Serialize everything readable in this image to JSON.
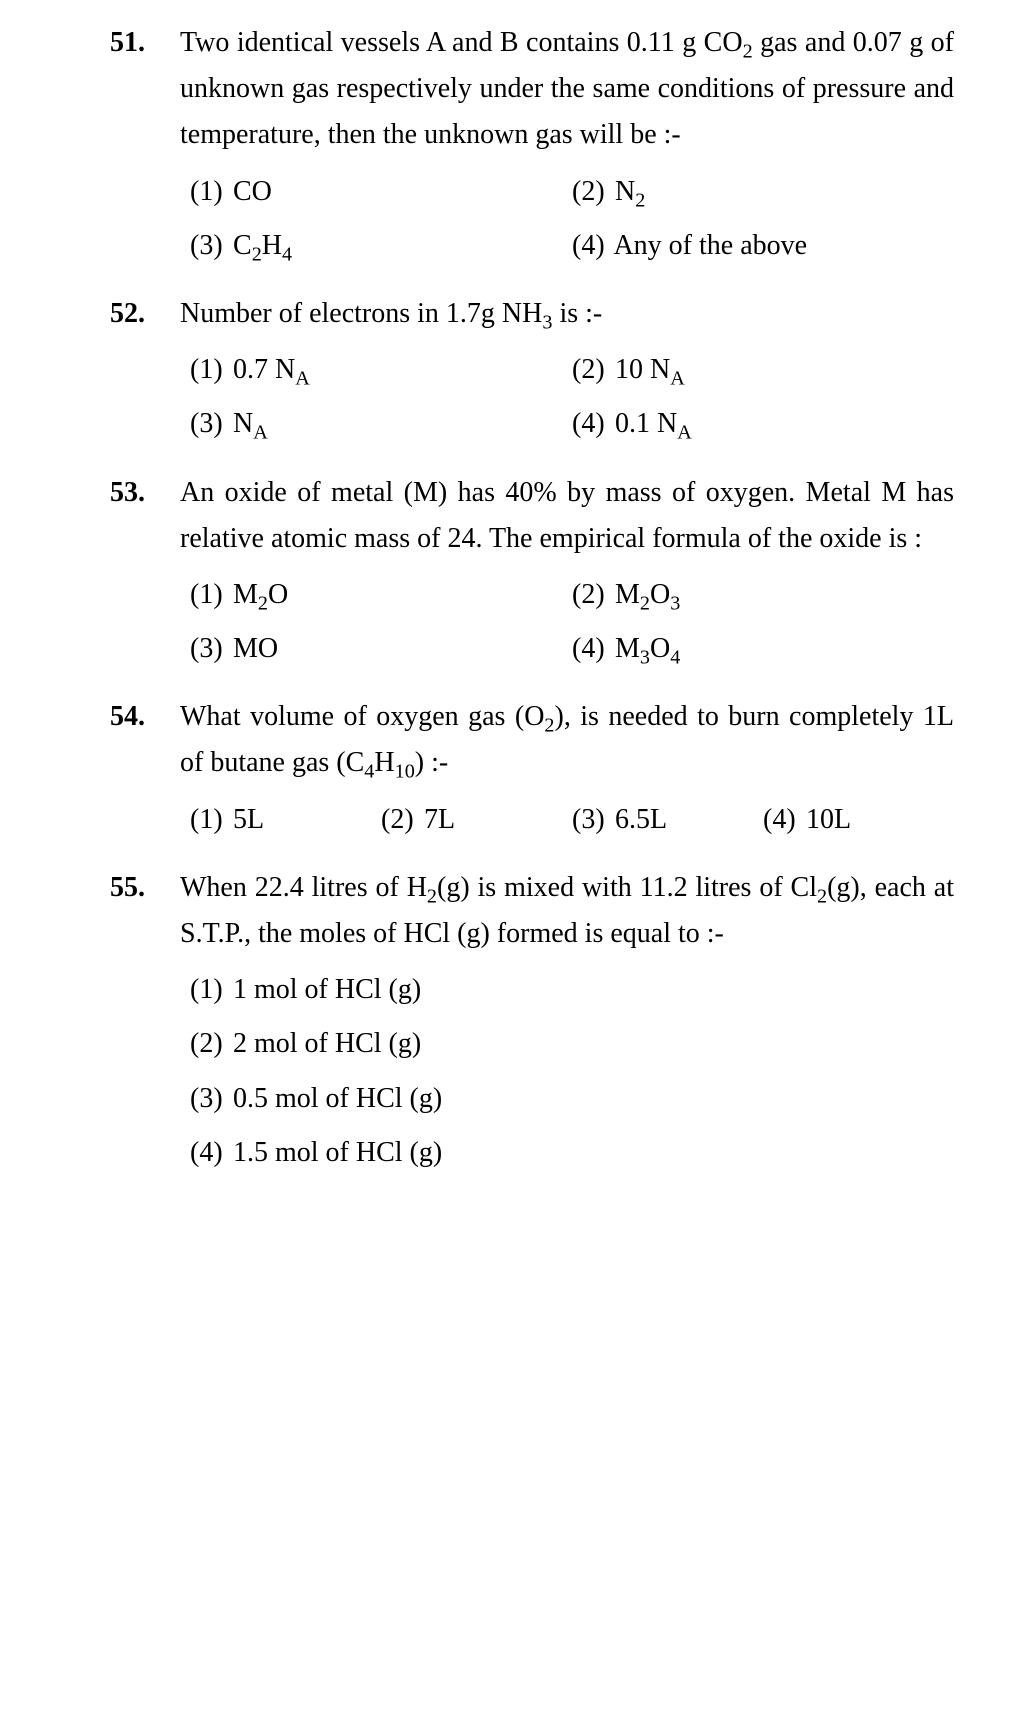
{
  "questions": [
    {
      "num": "51.",
      "text": "Two identical vessels A and B contains 0.11 g CO<sub>2</sub> gas and 0.07 g of unknown gas respectively under the same conditions of pressure and temperature, then the unknown gas will be :-",
      "layout": "w50",
      "options": [
        {
          "n": "(1)",
          "t": "CO"
        },
        {
          "n": "(2)",
          "t": "N<sub>2</sub>"
        },
        {
          "n": "(3)",
          "t": "C<sub>2</sub>H<sub>4</sub>"
        },
        {
          "n": "(4)",
          "t": "Any of the above"
        }
      ]
    },
    {
      "num": "52.",
      "text": "Number of electrons in 1.7g NH<sub>3</sub> is :-",
      "layout": "w50",
      "options": [
        {
          "n": "(1)",
          "t": "0.7 N<sub>A</sub>"
        },
        {
          "n": "(2)",
          "t": "10 N<sub>A</sub>"
        },
        {
          "n": "(3)",
          "t": "N<sub>A</sub>"
        },
        {
          "n": "(4)",
          "t": "0.1 N<sub>A</sub>"
        }
      ]
    },
    {
      "num": "53.",
      "text": "An oxide of metal (M) has 40% by mass of oxygen. Metal M has relative atomic mass of 24. The empirical formula of the oxide is :",
      "layout": "w50",
      "options": [
        {
          "n": "(1)",
          "t": "M<sub>2</sub>O"
        },
        {
          "n": "(2)",
          "t": "M<sub>2</sub>O<sub>3</sub>"
        },
        {
          "n": "(3)",
          "t": "MO"
        },
        {
          "n": "(4)",
          "t": "M<sub>3</sub>O<sub>4</sub>"
        }
      ]
    },
    {
      "num": "54.",
      "text": "What volume of oxygen gas (O<sub>2</sub>), is needed to burn completely 1L of butane gas (C<sub>4</sub>H<sub>10</sub>) :-",
      "layout": "w25",
      "options": [
        {
          "n": "(1)",
          "t": "5L"
        },
        {
          "n": "(2)",
          "t": "7L"
        },
        {
          "n": "(3)",
          "t": "6.5L"
        },
        {
          "n": "(4)",
          "t": "10L"
        }
      ]
    },
    {
      "num": "55.",
      "text": "When 22.4 litres of H<sub>2</sub>(g) is mixed with 11.2 litres of Cl<sub>2</sub>(g), each at S.T.P., the moles of HCl (g) formed is equal to :-",
      "layout": "w100",
      "options": [
        {
          "n": "(1)",
          "t": "1 mol of HCl (g)"
        },
        {
          "n": "(2)",
          "t": "2 mol of HCl (g)"
        },
        {
          "n": "(3)",
          "t": "0.5 mol of HCl (g)"
        },
        {
          "n": "(4)",
          "t": "1.5 mol of HCl (g)"
        }
      ]
    }
  ]
}
